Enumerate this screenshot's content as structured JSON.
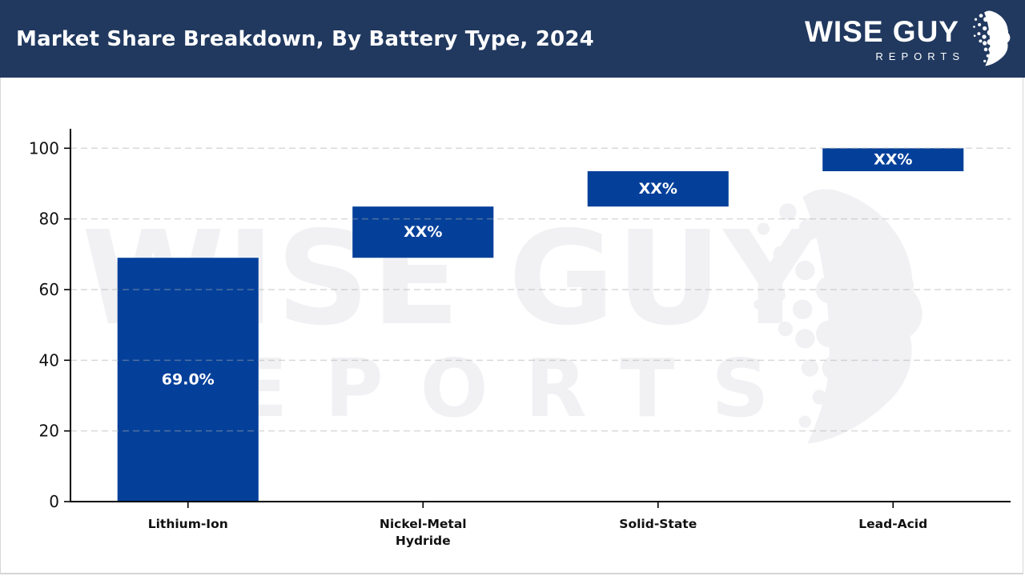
{
  "header": {
    "title": "Market Share Breakdown, By Battery Type, 2024",
    "bg_color": "#21395f",
    "logo": {
      "name": "WISE GUY",
      "sub": "REPORTS"
    }
  },
  "watermark": {
    "line1": "WISE GUY",
    "line2": "REPORTS",
    "color": "#f1f1f4"
  },
  "chart_data": {
    "type": "bar",
    "subtype": "waterfall",
    "title": "Market Share Breakdown, By Battery Type, 2024",
    "categories": [
      [
        "Lithium-Ion"
      ],
      [
        "Nickel-Metal",
        "Hydride"
      ],
      [
        "Solid-State"
      ],
      [
        "Lead-Acid"
      ]
    ],
    "segments": [
      {
        "start": 0,
        "end": 69.0,
        "label": "69.0%"
      },
      {
        "start": 69.0,
        "end": 83.5,
        "label": "XX%"
      },
      {
        "start": 83.5,
        "end": 93.5,
        "label": "XX%"
      },
      {
        "start": 93.5,
        "end": 100.0,
        "label": "XX%"
      }
    ],
    "xlabel": "",
    "ylabel": "",
    "yticks": [
      0,
      20,
      40,
      60,
      80,
      100
    ],
    "ylim": [
      0,
      105.5
    ],
    "grid": {
      "horizontal": true,
      "style": "dashed",
      "color": "#aaaaaa",
      "opacity": 0.45
    },
    "legend": "none",
    "bar_color": "#04409a",
    "bar_label_color": "#ffffff",
    "axis_color": "#000000",
    "tick_label_color": "#111111"
  }
}
